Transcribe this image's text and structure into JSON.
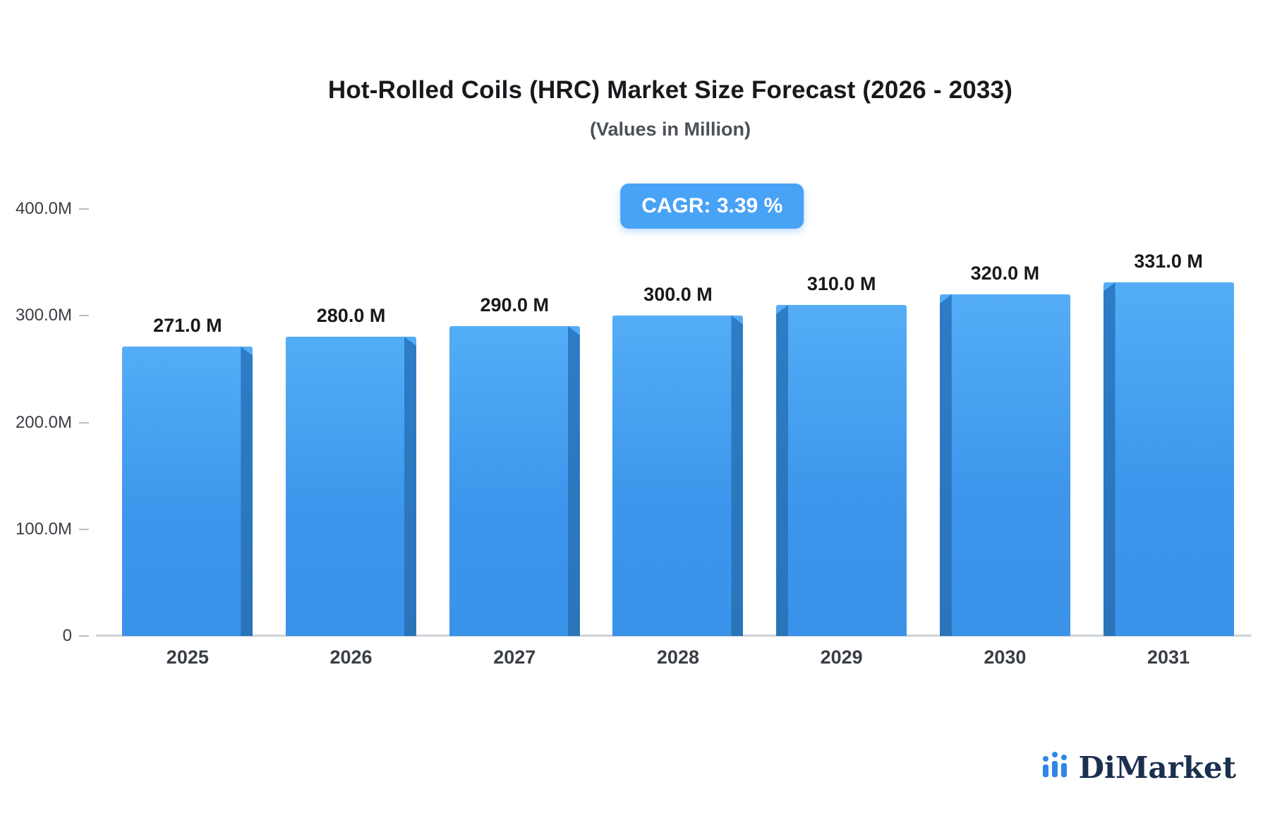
{
  "header": {
    "title": "Hot-Rolled Coils (HRC) Market Size Forecast (2026 - 2033)",
    "subtitle": "(Values in Million)",
    "cagr_label": "CAGR: 3.39 %"
  },
  "brand": {
    "name": "DiMarket",
    "icon": "bar-chart-logo-icon",
    "icon_color": "#2f86e8",
    "text_color": "#1b2f4e"
  },
  "chart_data": {
    "type": "bar",
    "title": "Hot-Rolled Coils (HRC) Market Size Forecast (2026 - 2033)",
    "subtitle": "(Values in Million)",
    "categories": [
      "2025",
      "2026",
      "2027",
      "2028",
      "2029",
      "2030",
      "2031"
    ],
    "values": [
      271,
      280,
      290,
      300,
      310,
      320,
      331
    ],
    "value_labels": [
      "271.0 M",
      "280.0 M",
      "290.0 M",
      "300.0 M",
      "310.0 M",
      "320.0 M",
      "331.0 M"
    ],
    "xlabel": "",
    "ylabel": "",
    "ylim": [
      0,
      400
    ],
    "ytick_labels": [
      "400.0M",
      "300.0M",
      "200.0M",
      "100.0M",
      "0"
    ],
    "grid": false,
    "legend": false,
    "annotation": "CAGR: 3.39 %",
    "bar_color_top": "#54adf6",
    "bar_color_bottom": "#3a92e9",
    "bar_side_color": "#2a74ba"
  }
}
